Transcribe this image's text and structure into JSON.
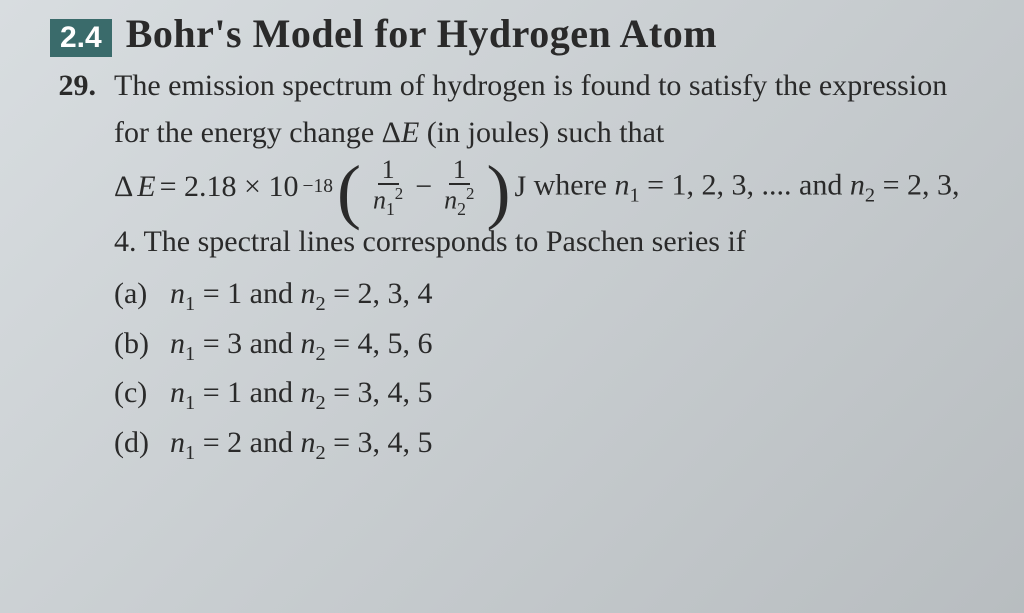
{
  "section": {
    "badge": "2.4",
    "title": "Bohr's Model for Hydrogen Atom"
  },
  "question": {
    "number": "29.",
    "text_part1": "The emission spectrum of hydrogen is found to satisfy the expression for the energy change Δ",
    "text_E": "E",
    "text_part1b": " (in joules) such that ",
    "eq_lhs1": "Δ",
    "eq_lhs2": "E",
    "eq_eq": " = 2.18 × 10",
    "eq_exp": "−18",
    "frac1_num": "1",
    "frac1_den_n": "n",
    "frac1_den_s1": "1",
    "frac1_den_s2": "2",
    "minus": "−",
    "frac2_num": "1",
    "frac2_den_n": "n",
    "frac2_den_s1": "2",
    "frac2_den_s2": "2",
    "unit": " J",
    "text_part2a": "where ",
    "n1": "n",
    "s1": "1",
    "vals1": " = 1, 2, 3, .... and ",
    "n2": "n",
    "s2": "2",
    "vals2": " = 2, 3, 4. The spectral lines corresponds to Paschen series if"
  },
  "options": {
    "a": {
      "label": "(a)",
      "n1": "n",
      "s1": "1",
      "mid": " = 1 and ",
      "n2": "n",
      "s2": "2",
      "tail": " = 2, 3, 4"
    },
    "b": {
      "label": "(b)",
      "n1": "n",
      "s1": "1",
      "mid": " = 3 and ",
      "n2": "n",
      "s2": "2",
      "tail": " = 4, 5, 6"
    },
    "c": {
      "label": "(c)",
      "n1": "n",
      "s1": "1",
      "mid": " = 1 and ",
      "n2": "n",
      "s2": "2",
      "tail": " = 3, 4, 5"
    },
    "d": {
      "label": "(d)",
      "n1": "n",
      "s1": "1",
      "mid": " = 2 and ",
      "n2": "n",
      "s2": "2",
      "tail": " = 3, 4, 5"
    }
  },
  "colors": {
    "badge_bg": "#3a6b6b",
    "text": "#2a2a2a"
  }
}
